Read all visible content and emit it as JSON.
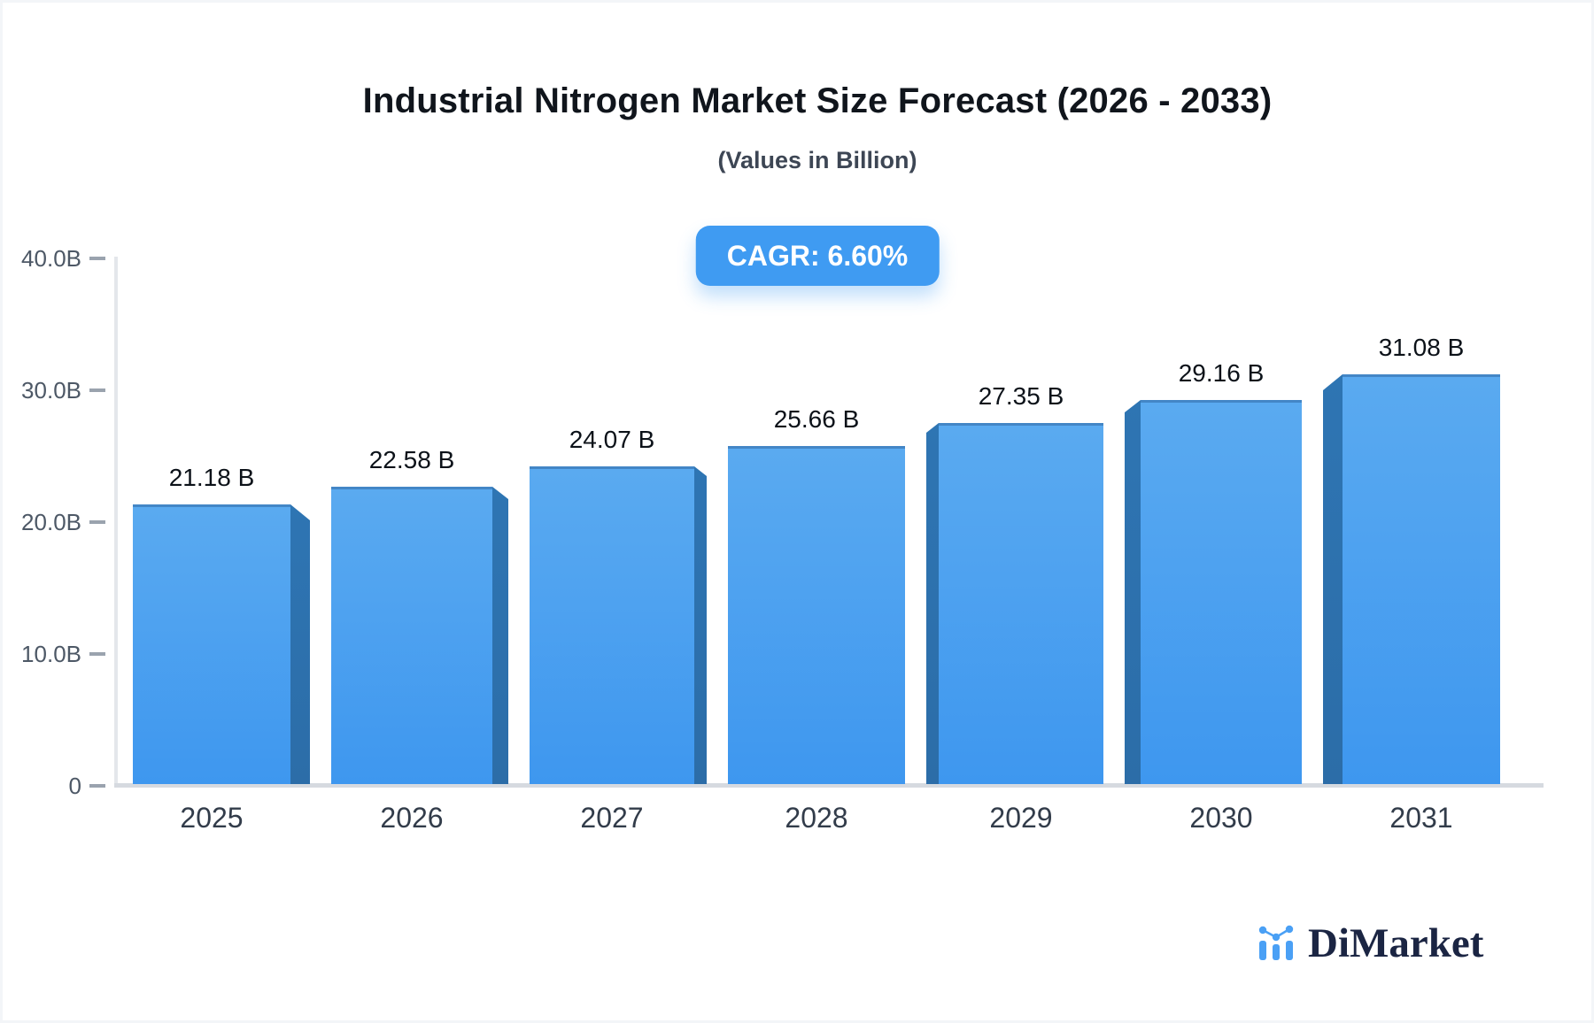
{
  "header": {
    "title": "Industrial Nitrogen Market Size Forecast (2026 - 2033)",
    "subtitle": "(Values in Billion)",
    "cagr_badge": "CAGR: 6.60%"
  },
  "brand": {
    "name": "DiMarket",
    "icon": "bar-line-chart-icon"
  },
  "colors": {
    "accent": "#3f9bf2",
    "bar_face_top": "#5aaaf0",
    "bar_face_bottom": "#3e97ef",
    "bar_top_edge": "#4386c6",
    "bar_side": "#2e75b3",
    "bar_side_dark": "#2c6da8",
    "axis_line": "#e4e7eb",
    "baseline": "#d6dae0",
    "title_text": "#10151c",
    "brand_navy": "#1b2543",
    "logo_blue": "#4aa0f5"
  },
  "chart_data": {
    "type": "bar",
    "style": "3d-perspective-bars",
    "categories": [
      "2025",
      "2026",
      "2027",
      "2028",
      "2029",
      "2030",
      "2031"
    ],
    "values": [
      21.18,
      22.58,
      24.07,
      25.66,
      27.35,
      29.16,
      31.08
    ],
    "value_labels": [
      "21.18 B",
      "22.58 B",
      "24.07 B",
      "25.66 B",
      "27.35 B",
      "29.16 B",
      "31.08 B"
    ],
    "title": "Industrial Nitrogen Market Size Forecast (2026 - 2033)",
    "subtitle": "(Values in Billion)",
    "xlabel": "",
    "ylabel": "",
    "ylim": [
      0,
      40
    ],
    "y_ticks": [
      {
        "label": "40.0B",
        "value": 40
      },
      {
        "label": "30.0B",
        "value": 30
      },
      {
        "label": "20.0B",
        "value": 20
      },
      {
        "label": "10.0B",
        "value": 10
      },
      {
        "label": "0",
        "value": 0
      }
    ],
    "grid": false,
    "legend_position": "none",
    "annotation": "CAGR: 6.60%"
  }
}
